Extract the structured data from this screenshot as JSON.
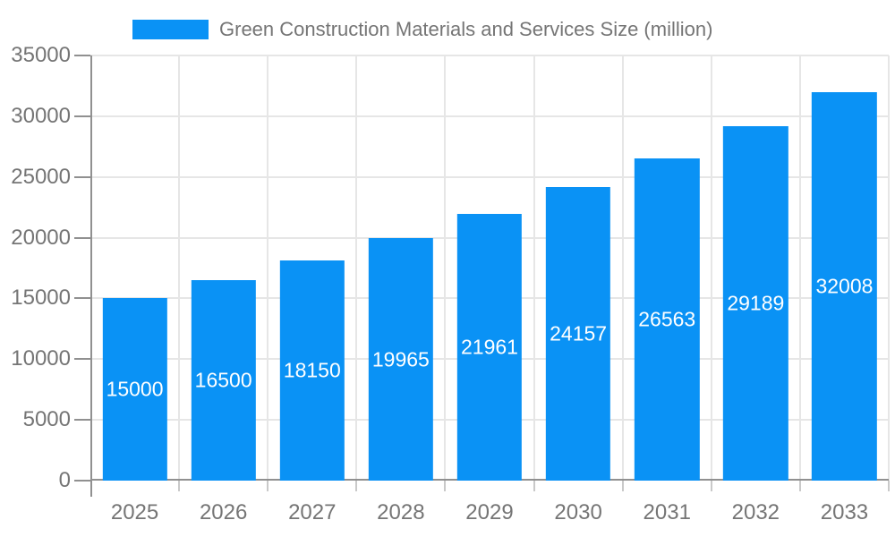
{
  "legend": {
    "series_label": "Green Construction Materials and Services Size (million)"
  },
  "chart_data": {
    "type": "bar",
    "title": "Green Construction Materials and Services Size (million)",
    "categories": [
      "2025",
      "2026",
      "2027",
      "2028",
      "2029",
      "2030",
      "2031",
      "2032",
      "2033"
    ],
    "values": [
      15000,
      16500,
      18150,
      19965,
      21961,
      24157,
      26563,
      29189,
      32008
    ],
    "xlabel": "",
    "ylabel": "",
    "ylim": [
      0,
      35000
    ],
    "yticks": [
      0,
      5000,
      10000,
      15000,
      20000,
      25000,
      30000,
      35000
    ],
    "grid": true,
    "legend_position": "top",
    "value_labels_position": "inside-center",
    "colors": {
      "bar": "#0A92F5",
      "grid": "#e6e6e6",
      "axis": "#909090",
      "minor_tick": "#c9c9c9",
      "tick_text": "#757575",
      "value_label": "#ffffff",
      "background": "#ffffff"
    }
  }
}
